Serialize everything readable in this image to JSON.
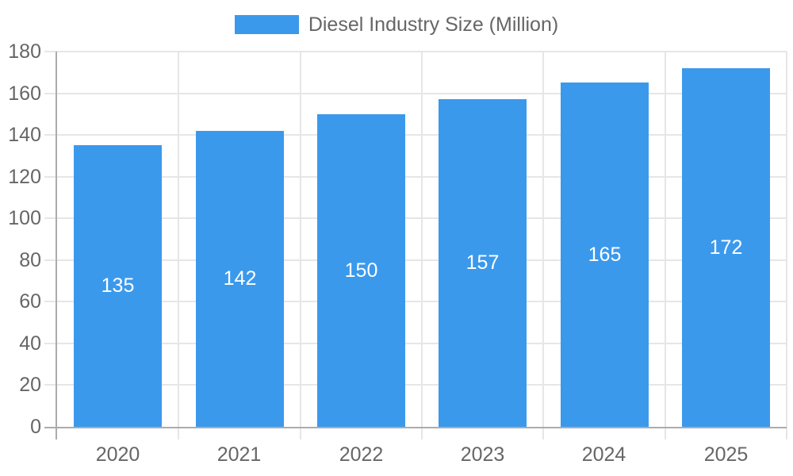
{
  "chart_data": {
    "type": "bar",
    "title": "",
    "xlabel": "",
    "ylabel": "",
    "legend": {
      "label": "Diesel Industry Size (Million)",
      "position": "top"
    },
    "categories": [
      "2020",
      "2021",
      "2022",
      "2023",
      "2024",
      "2025"
    ],
    "values": [
      135,
      142,
      150,
      157,
      165,
      172
    ],
    "ylim": [
      0,
      180
    ],
    "ytick_step": 20,
    "ytick_labels": [
      "0",
      "20",
      "40",
      "60",
      "80",
      "100",
      "120",
      "140",
      "160",
      "180"
    ],
    "grid": true,
    "value_labels_inside_bars": true,
    "colors": {
      "bar": "#3B99EC",
      "bar_value_text": "#FFFFFF",
      "axis_text": "#666666",
      "gridline": "#E6E6E6",
      "axis_line": "#ACACAC",
      "background": "#FFFFFF"
    }
  }
}
